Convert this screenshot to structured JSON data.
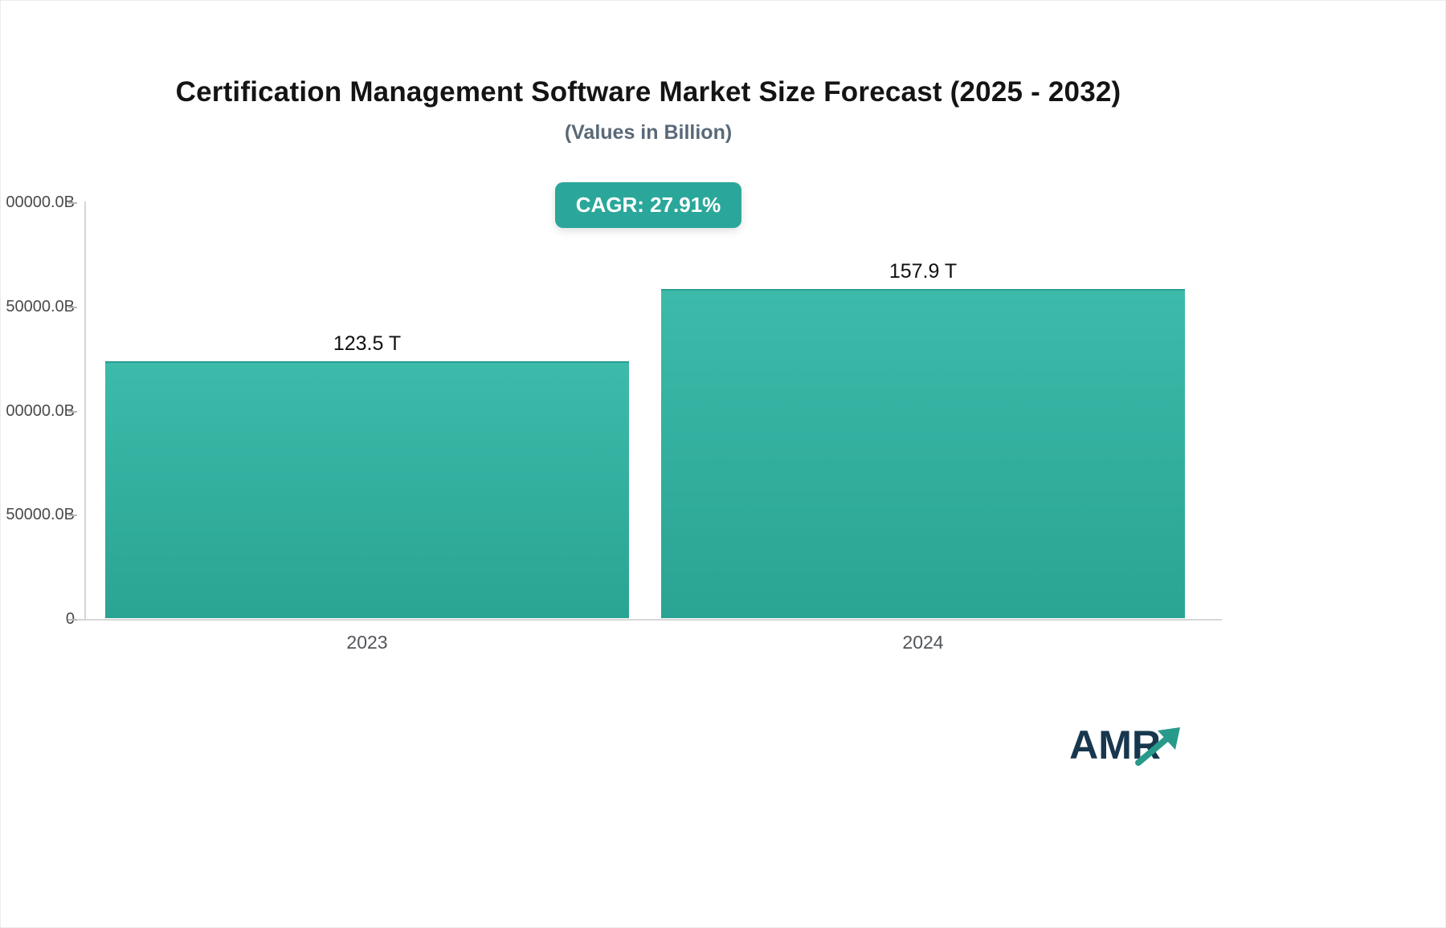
{
  "header": {
    "title": "Certification Management Software Market Size Forecast (2025 - 2032)",
    "subtitle": "(Values in Billion)",
    "cagr_label": "CAGR: 27.91%"
  },
  "chart_data": {
    "type": "bar",
    "title": "Certification Management Software Market Size Forecast (2025 - 2032)",
    "subtitle": "(Values in Billion)",
    "categories": [
      "2023",
      "2024"
    ],
    "values": [
      123500,
      157900
    ],
    "value_labels": [
      "123.5 T",
      "157.9 T"
    ],
    "xlabel": "",
    "ylabel": "",
    "ylim": [
      0,
      200000
    ],
    "y_tick_labels_top_to_bottom": [
      "00000.0B",
      "50000.0B",
      "00000.0B",
      "50000.0B",
      "0"
    ],
    "grid": false,
    "legend": "none",
    "bar_color": "#2fae9e",
    "unit": "Billion"
  },
  "branding": {
    "logo_text": "AMR",
    "accent_color": "#2aa79a"
  }
}
